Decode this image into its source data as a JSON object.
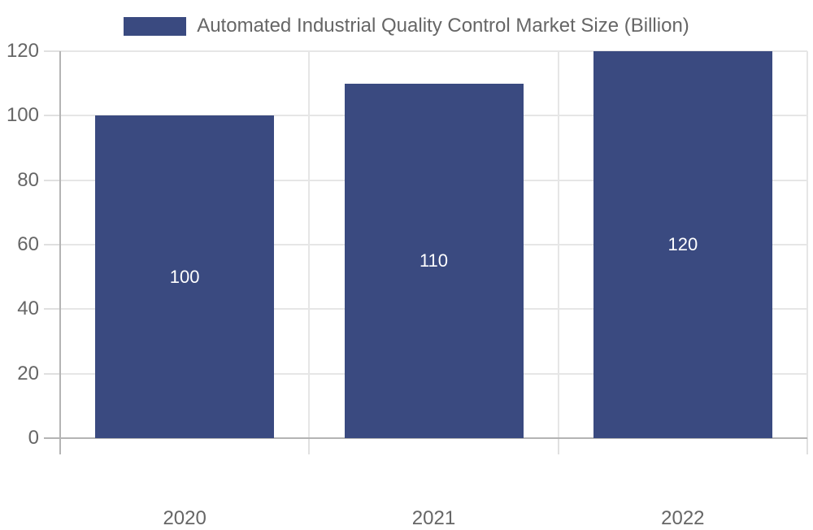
{
  "chart_data": {
    "type": "bar",
    "title": "Automated Industrial Quality Control Market Size (Billion)",
    "legend_entries": [
      "Automated Industrial Quality Control Market Size (Billion)"
    ],
    "legend_position": "top",
    "categories": [
      "2020",
      "2021",
      "2022"
    ],
    "series": [
      {
        "name": "Automated Industrial Quality Control Market Size (Billion)",
        "values": [
          100,
          110,
          120
        ],
        "data_labels": [
          "100",
          "110",
          "120"
        ]
      }
    ],
    "xlabel": "",
    "ylabel": "",
    "ylim": [
      0,
      120
    ],
    "yticks": [
      0,
      20,
      40,
      60,
      80,
      100,
      120
    ],
    "grid": true,
    "colors": {
      "bar": "#3a4a80",
      "tick_text": "#666666",
      "grid_line": "#e6e6e6",
      "axis_line": "#b4b4b4",
      "data_label": "#ffffff",
      "background": "#ffffff"
    }
  }
}
